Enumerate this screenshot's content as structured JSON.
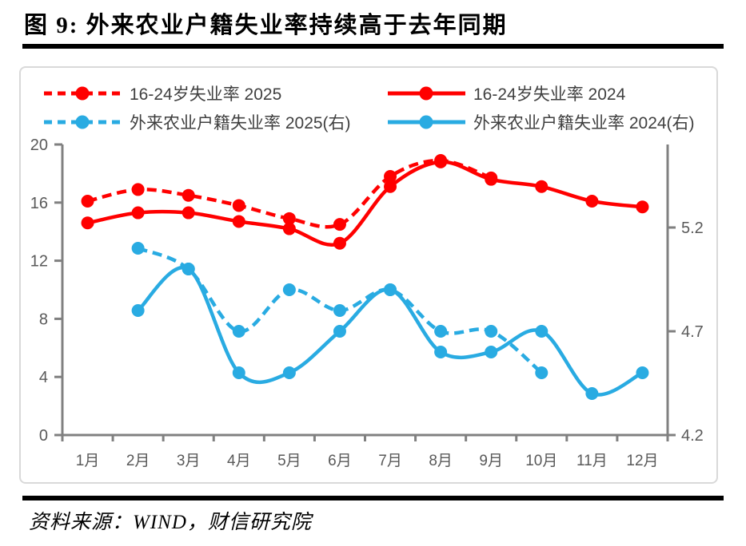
{
  "header": {
    "title": "图 9: 外来农业户籍失业率持续高于去年同期"
  },
  "source": {
    "text": "资料来源：WIND，财信研究院"
  },
  "chart_data": {
    "type": "line",
    "title": "外来农业户籍失业率持续高于去年同期",
    "categories": [
      "1月",
      "2月",
      "3月",
      "4月",
      "5月",
      "6月",
      "7月",
      "8月",
      "9月",
      "10月",
      "11月",
      "12月"
    ],
    "left_axis": {
      "min": 0,
      "max": 20,
      "ticks": [
        0,
        4,
        8,
        12,
        16,
        20
      ]
    },
    "right_axis": {
      "min": 4.2,
      "max": 5.6,
      "ticks": [
        4.2,
        4.7,
        5.2
      ]
    },
    "grid": false,
    "legend_position": "top-left",
    "axis_color": "#808080",
    "tick_label_color": "#595959",
    "legend_text_color": "#404040",
    "series": [
      {
        "name": "16-24岁失业率 2025",
        "axis": "left",
        "line_style": "dashed",
        "color": "#FF0000",
        "values": [
          16.1,
          16.9,
          16.5,
          15.8,
          14.9,
          14.5,
          17.8,
          18.9,
          17.7,
          null,
          null,
          null
        ]
      },
      {
        "name": "16-24岁失业率 2024",
        "axis": "left",
        "line_style": "solid",
        "color": "#FF0000",
        "values": [
          14.6,
          15.3,
          15.3,
          14.7,
          14.2,
          13.2,
          17.1,
          18.8,
          17.6,
          17.1,
          16.1,
          15.7
        ]
      },
      {
        "name": "外来农业户籍失业率 2025(右)",
        "axis": "right",
        "line_style": "dashed",
        "color": "#29ABE2",
        "values": [
          null,
          5.1,
          5.0,
          4.7,
          4.9,
          4.8,
          4.9,
          4.7,
          4.7,
          4.5,
          null,
          null
        ]
      },
      {
        "name": "外来农业户籍失业率 2024(右)",
        "axis": "right",
        "line_style": "solid",
        "color": "#29ABE2",
        "values": [
          null,
          4.8,
          5.0,
          4.5,
          4.5,
          4.7,
          4.9,
          4.6,
          4.6,
          4.7,
          4.4,
          4.5
        ]
      }
    ]
  }
}
